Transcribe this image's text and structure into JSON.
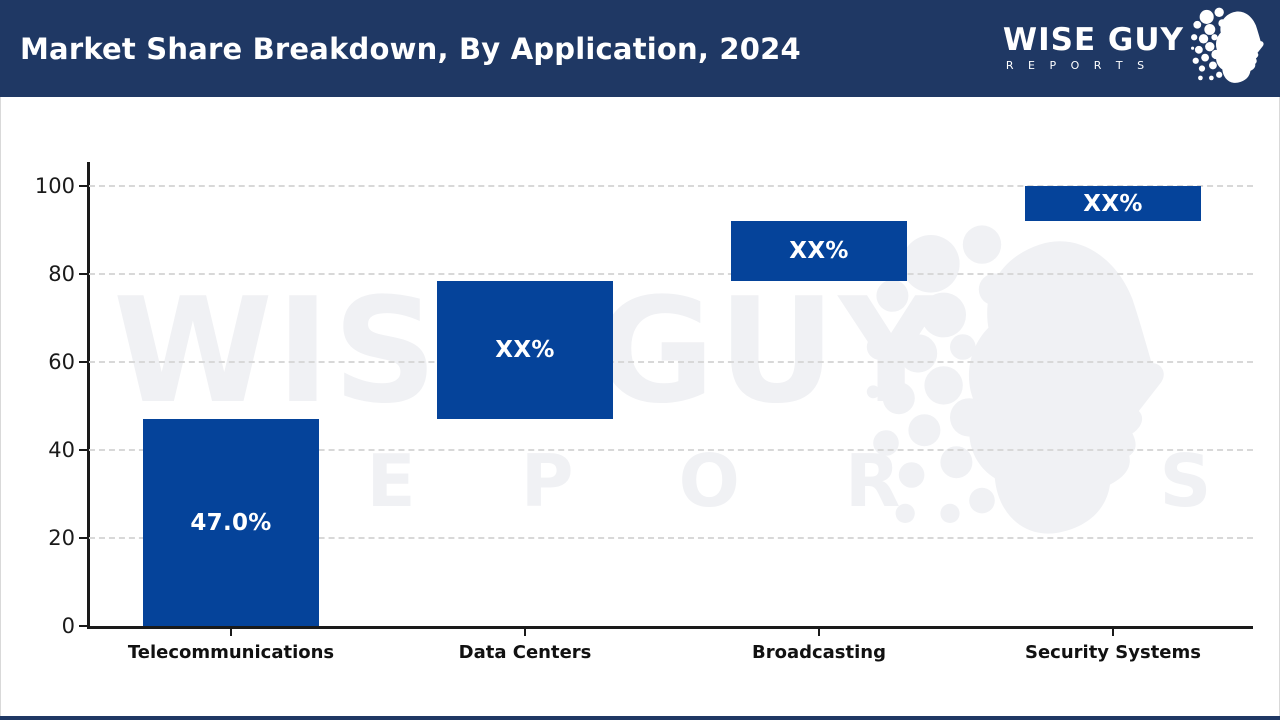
{
  "header": {
    "title": "Market Share Breakdown, By Application, 2024",
    "bg_color": "#1f3864",
    "logo": {
      "line1": "WISE GUY",
      "line2": "R E P O R T S",
      "face_icon": "dotted-head-profile"
    }
  },
  "watermark": {
    "line1": "WISE GUY",
    "line2": "R E P O R T S",
    "face_icon": "dotted-head-profile",
    "color": "#f0f1f4"
  },
  "chart_data": {
    "type": "bar",
    "subtype": "waterfall-floating-bars",
    "title": "Market Share Breakdown, By Application, 2024",
    "xlabel": "",
    "ylabel": "",
    "ylim": [
      0,
      105
    ],
    "yticks": [
      0,
      20,
      40,
      60,
      80,
      100
    ],
    "grid": "horizontal-dashed",
    "legend": "none",
    "bar_color": "#05439a",
    "label_color": "#ffffff",
    "categories": [
      "Telecommunications",
      "Data Centers",
      "Broadcasting",
      "Security Systems"
    ],
    "segments": [
      {
        "category": "Telecommunications",
        "start": 0,
        "end": 47.0,
        "value_label": "47.0%"
      },
      {
        "category": "Data Centers",
        "start": 47.0,
        "end": 78.4,
        "value_label": "XX%"
      },
      {
        "category": "Broadcasting",
        "start": 78.4,
        "end": 92.0,
        "value_label": "XX%"
      },
      {
        "category": "Security Systems",
        "start": 92.0,
        "end": 100.0,
        "value_label": "XX%"
      }
    ]
  }
}
